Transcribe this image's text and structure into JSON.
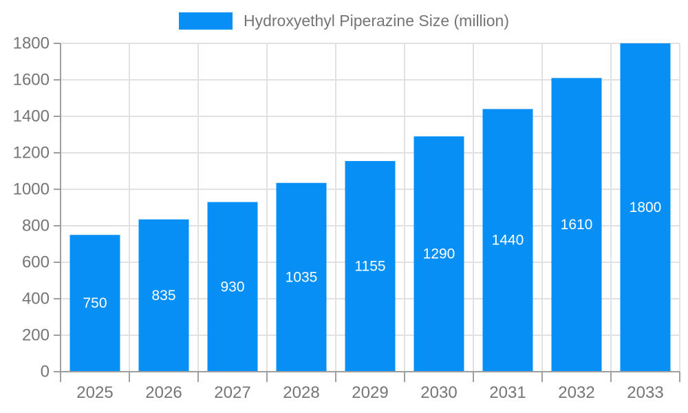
{
  "colors": {
    "bar": "#0690f5",
    "grid": "#e1e1e1",
    "axis": "#9e9e9e",
    "axis_label": "#757575",
    "bar_label": "#ffffff",
    "background": "#ffffff"
  },
  "chart_data": {
    "type": "bar",
    "title": "Hydroxyethyl Piperazine Size (million)",
    "categories": [
      "2025",
      "2026",
      "2027",
      "2028",
      "2029",
      "2030",
      "2031",
      "2032",
      "2033"
    ],
    "series": [
      {
        "name": "Hydroxyethyl Piperazine Size (million)",
        "values": [
          750,
          835,
          930,
          1035,
          1155,
          1290,
          1440,
          1610,
          1800
        ]
      }
    ],
    "xlabel": "",
    "ylabel": "",
    "ylim": [
      0,
      1800
    ],
    "yticks": [
      0,
      200,
      400,
      600,
      800,
      1000,
      1200,
      1400,
      1600,
      1800
    ],
    "grid": true,
    "legend_position": "top",
    "bar_value_labels": "inside-center"
  }
}
